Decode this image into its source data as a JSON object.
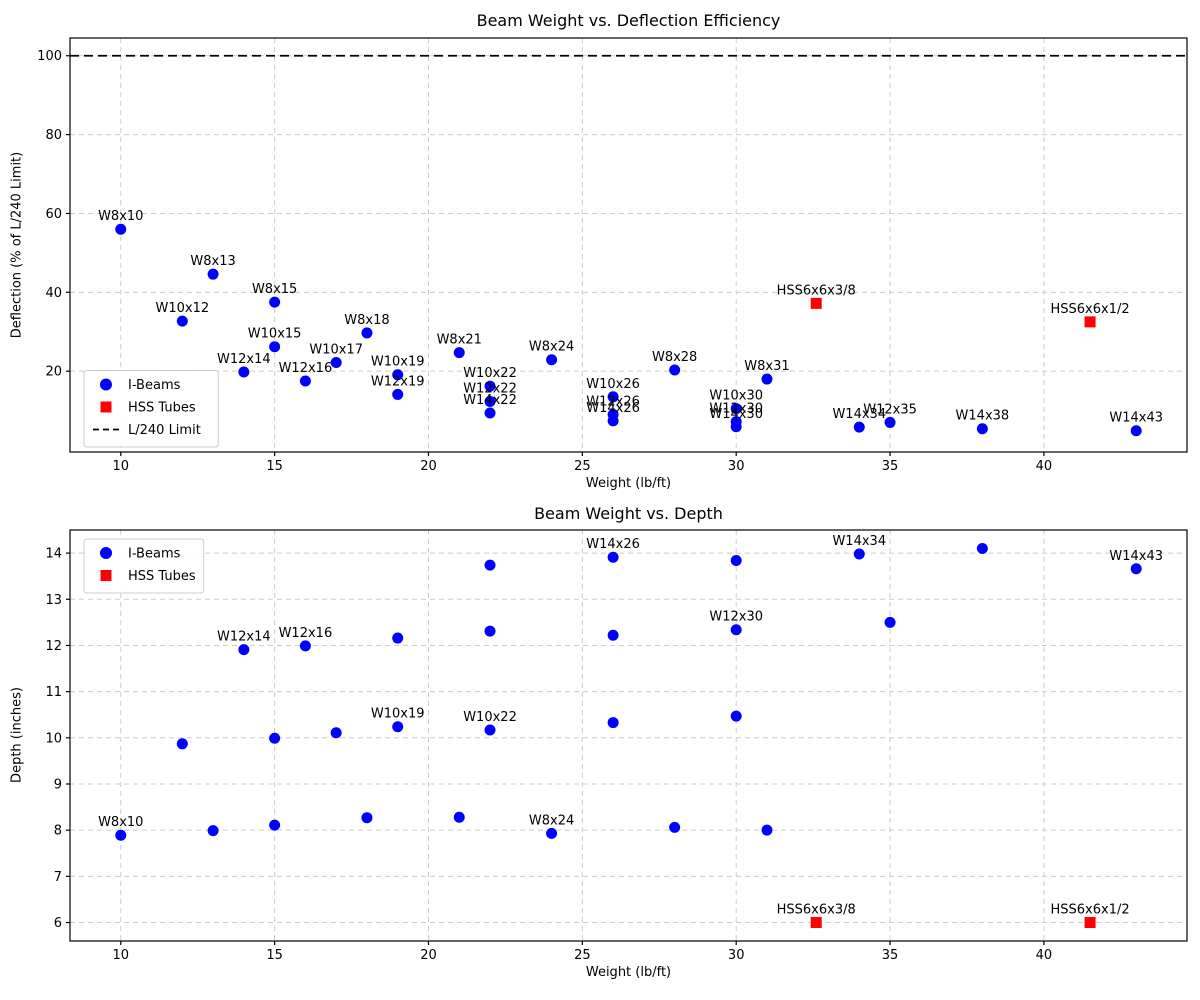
{
  "figure": {
    "background": "#ffffff",
    "grid_color": "#cccccc",
    "spine_color": "#000000",
    "text_color": "#000000",
    "ibeam_color": "#0000ff",
    "hss_color": "#ff0000",
    "limit_color": "#000000"
  },
  "chart_data": [
    {
      "type": "scatter",
      "title": "Beam Weight vs. Deflection Efficiency",
      "xlabel": "Weight (lb/ft)",
      "ylabel": "Deflection (% of L/240 Limit)",
      "xlim": [
        8.35,
        44.65
      ],
      "ylim": [
        -0.5,
        104.5
      ],
      "xticks": [
        10,
        15,
        20,
        25,
        30,
        35,
        40
      ],
      "yticks": [
        20,
        40,
        60,
        80,
        100
      ],
      "grid": true,
      "limit_line": {
        "y": 100,
        "label": "L/240 Limit"
      },
      "legend": {
        "loc": "lower-left",
        "entries": [
          {
            "label": "I-Beams",
            "marker": "circle",
            "color": "#0000ff"
          },
          {
            "label": "HSS Tubes",
            "marker": "square",
            "color": "#ff0000"
          },
          {
            "label": "L/240 Limit",
            "marker": "dashed-line",
            "color": "#000000"
          }
        ]
      },
      "series": [
        {
          "name": "I-Beams",
          "marker": "circle",
          "color": "#0000ff",
          "points": [
            {
              "label": "W8x10",
              "x": 10,
              "y": 56.0,
              "annotate": true
            },
            {
              "label": "W8x13",
              "x": 13,
              "y": 44.6,
              "annotate": true
            },
            {
              "label": "W8x15",
              "x": 15,
              "y": 37.5,
              "annotate": true
            },
            {
              "label": "W8x18",
              "x": 18,
              "y": 29.7,
              "annotate": true
            },
            {
              "label": "W8x21",
              "x": 21,
              "y": 24.7,
              "annotate": true
            },
            {
              "label": "W8x24",
              "x": 24,
              "y": 22.9,
              "annotate": true
            },
            {
              "label": "W8x28",
              "x": 28,
              "y": 20.3,
              "annotate": true
            },
            {
              "label": "W8x31",
              "x": 31,
              "y": 18.0,
              "annotate": true
            },
            {
              "label": "W10x12",
              "x": 12,
              "y": 32.7,
              "annotate": true
            },
            {
              "label": "W10x15",
              "x": 15,
              "y": 26.2,
              "annotate": true
            },
            {
              "label": "W10x17",
              "x": 17,
              "y": 22.2,
              "annotate": true
            },
            {
              "label": "W10x19",
              "x": 19,
              "y": 19.1,
              "annotate": true
            },
            {
              "label": "W10x22",
              "x": 22,
              "y": 16.2,
              "annotate": true
            },
            {
              "label": "W10x26",
              "x": 26,
              "y": 13.5,
              "annotate": true
            },
            {
              "label": "W10x30",
              "x": 30,
              "y": 10.5,
              "annotate": true
            },
            {
              "label": "W12x14",
              "x": 14,
              "y": 19.8,
              "annotate": true
            },
            {
              "label": "W12x16",
              "x": 16,
              "y": 17.5,
              "annotate": true
            },
            {
              "label": "W12x19",
              "x": 19,
              "y": 14.1,
              "annotate": true
            },
            {
              "label": "W12x22",
              "x": 22,
              "y": 12.3,
              "annotate": true
            },
            {
              "label": "W12x26",
              "x": 26,
              "y": 9.0,
              "annotate": true
            },
            {
              "label": "W12x30",
              "x": 30,
              "y": 7.2,
              "annotate": true
            },
            {
              "label": "W12x35",
              "x": 35,
              "y": 7.0,
              "annotate": true
            },
            {
              "label": "W14x22",
              "x": 22,
              "y": 9.4,
              "annotate": true
            },
            {
              "label": "W14x26",
              "x": 26,
              "y": 7.4,
              "annotate": true
            },
            {
              "label": "W14x30",
              "x": 30,
              "y": 5.9,
              "annotate": true
            },
            {
              "label": "W14x34",
              "x": 34,
              "y": 5.8,
              "annotate": true
            },
            {
              "label": "W14x38",
              "x": 38,
              "y": 5.4,
              "annotate": true
            },
            {
              "label": "W14x43",
              "x": 43,
              "y": 4.9,
              "annotate": true
            }
          ]
        },
        {
          "name": "HSS Tubes",
          "marker": "square",
          "color": "#ff0000",
          "points": [
            {
              "label": "HSS6x6x3/8",
              "x": 32.6,
              "y": 37.2,
              "annotate": true
            },
            {
              "label": "HSS6x6x1/2",
              "x": 41.5,
              "y": 32.5,
              "annotate": true
            }
          ]
        }
      ]
    },
    {
      "type": "scatter",
      "title": "Beam Weight vs. Depth",
      "xlabel": "Weight (lb/ft)",
      "ylabel": "Depth (inches)",
      "xlim": [
        8.35,
        44.65
      ],
      "ylim": [
        5.6,
        14.5
      ],
      "xticks": [
        10,
        15,
        20,
        25,
        30,
        35,
        40
      ],
      "yticks": [
        6,
        7,
        8,
        9,
        10,
        11,
        12,
        13,
        14
      ],
      "grid": true,
      "limit_line": null,
      "legend": {
        "loc": "upper-left",
        "entries": [
          {
            "label": "I-Beams",
            "marker": "circle",
            "color": "#0000ff"
          },
          {
            "label": "HSS Tubes",
            "marker": "square",
            "color": "#ff0000"
          }
        ]
      },
      "series": [
        {
          "name": "I-Beams",
          "marker": "circle",
          "color": "#0000ff",
          "points": [
            {
              "label": "W8x10",
              "x": 10,
              "y": 7.89,
              "annotate": true
            },
            {
              "label": "W8x13",
              "x": 13,
              "y": 7.99,
              "annotate": false
            },
            {
              "label": "W8x15",
              "x": 15,
              "y": 8.11,
              "annotate": false
            },
            {
              "label": "W8x18",
              "x": 18,
              "y": 8.27,
              "annotate": false
            },
            {
              "label": "W8x21",
              "x": 21,
              "y": 8.28,
              "annotate": false
            },
            {
              "label": "W8x24",
              "x": 24,
              "y": 7.93,
              "annotate": true
            },
            {
              "label": "W8x28",
              "x": 28,
              "y": 8.06,
              "annotate": false
            },
            {
              "label": "W8x31",
              "x": 31,
              "y": 8.0,
              "annotate": false
            },
            {
              "label": "W10x12",
              "x": 12,
              "y": 9.87,
              "annotate": false
            },
            {
              "label": "W10x15",
              "x": 15,
              "y": 9.99,
              "annotate": false
            },
            {
              "label": "W10x17",
              "x": 17,
              "y": 10.11,
              "annotate": false
            },
            {
              "label": "W10x19",
              "x": 19,
              "y": 10.24,
              "annotate": true
            },
            {
              "label": "W10x22",
              "x": 22,
              "y": 10.17,
              "annotate": true
            },
            {
              "label": "W10x26",
              "x": 26,
              "y": 10.33,
              "annotate": false
            },
            {
              "label": "W10x30",
              "x": 30,
              "y": 10.47,
              "annotate": false
            },
            {
              "label": "W12x14",
              "x": 14,
              "y": 11.91,
              "annotate": true
            },
            {
              "label": "W12x16",
              "x": 16,
              "y": 11.99,
              "annotate": true
            },
            {
              "label": "W12x19",
              "x": 19,
              "y": 12.16,
              "annotate": false
            },
            {
              "label": "W12x22",
              "x": 22,
              "y": 12.31,
              "annotate": false
            },
            {
              "label": "W12x26",
              "x": 26,
              "y": 12.22,
              "annotate": false
            },
            {
              "label": "W12x30",
              "x": 30,
              "y": 12.34,
              "annotate": true
            },
            {
              "label": "W12x35",
              "x": 35,
              "y": 12.5,
              "annotate": false
            },
            {
              "label": "W14x22",
              "x": 22,
              "y": 13.74,
              "annotate": false
            },
            {
              "label": "W14x26",
              "x": 26,
              "y": 13.91,
              "annotate": true
            },
            {
              "label": "W14x30",
              "x": 30,
              "y": 13.84,
              "annotate": false
            },
            {
              "label": "W14x34",
              "x": 34,
              "y": 13.98,
              "annotate": true
            },
            {
              "label": "W14x38",
              "x": 38,
              "y": 14.1,
              "annotate": false
            },
            {
              "label": "W14x43",
              "x": 43,
              "y": 13.66,
              "annotate": true
            }
          ]
        },
        {
          "name": "HSS Tubes",
          "marker": "square",
          "color": "#ff0000",
          "points": [
            {
              "label": "HSS6x6x3/8",
              "x": 32.6,
              "y": 6.0,
              "annotate": true
            },
            {
              "label": "HSS6x6x1/2",
              "x": 41.5,
              "y": 6.0,
              "annotate": true
            }
          ]
        }
      ]
    }
  ]
}
